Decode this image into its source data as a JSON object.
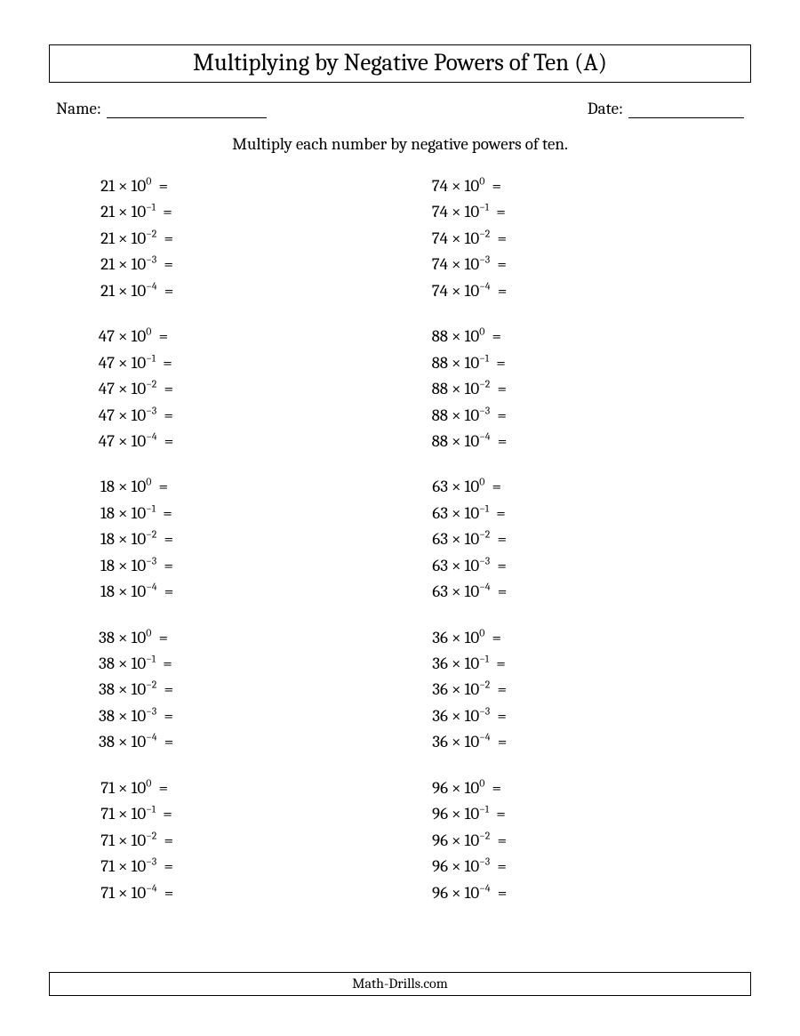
{
  "title": "Multiplying by Negative Powers of Ten (A)",
  "meta": {
    "name_label": "Name:",
    "date_label": "Date:"
  },
  "instructions": "Multiply each number by negative powers of ten.",
  "base": "10",
  "exponents": [
    "0",
    "−1",
    "−2",
    "−3",
    "−4"
  ],
  "columns": [
    [
      "21",
      "47",
      "18",
      "38",
      "71"
    ],
    [
      "74",
      "88",
      "63",
      "36",
      "96"
    ]
  ],
  "footer": "Math-Drills.com",
  "style": {
    "page_bg": "#ffffff",
    "text_color": "#000000",
    "border_color": "#000000",
    "title_fontsize": 27,
    "body_fontsize": 19,
    "footer_fontsize": 16,
    "font_family": "Cambria, Georgia, 'Times New Roman', serif",
    "times_symbol": "×",
    "equals_symbol": "="
  }
}
